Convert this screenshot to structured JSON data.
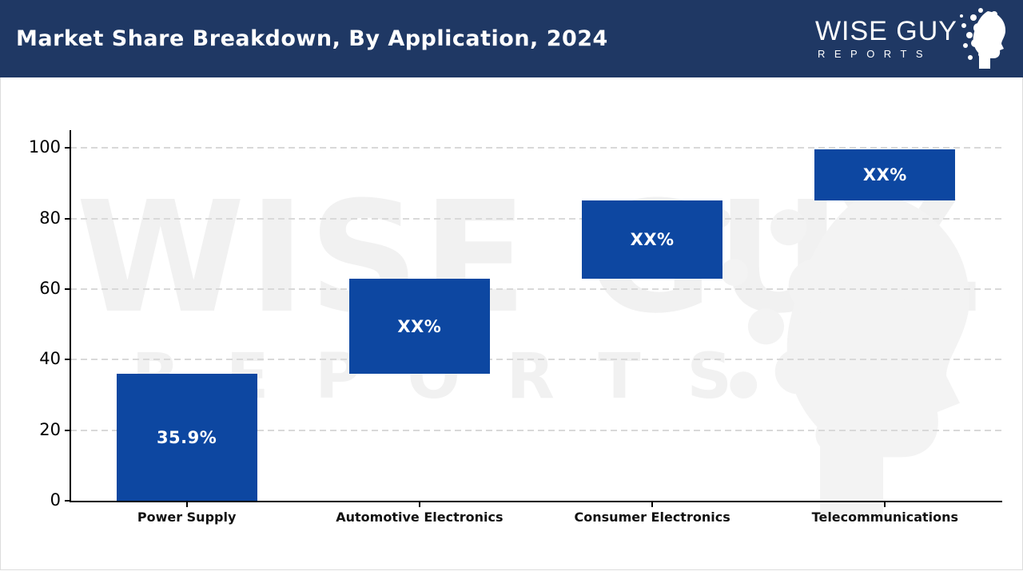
{
  "header": {
    "title": "Market Share Breakdown, By Application, 2024",
    "bg_color": "#1f3864",
    "logo": {
      "line1": "WISE GUY",
      "line2": "REPORTS"
    }
  },
  "watermark": {
    "line1": "WISE GUY.",
    "line2": "REPORTS"
  },
  "chart_data": {
    "type": "bar",
    "subtype": "waterfall",
    "title": "Market Share Breakdown, By Application, 2024",
    "categories": [
      "Power Supply",
      "Automotive Electronics",
      "Consumer Electronics",
      "Telecommunications"
    ],
    "bars": [
      {
        "label": "35.9%",
        "start": 0,
        "end": 35.9
      },
      {
        "label": "XX%",
        "start": 35.9,
        "end": 63.0
      },
      {
        "label": "XX%",
        "start": 63.0,
        "end": 85.1
      },
      {
        "label": "XX%",
        "start": 85.1,
        "end": 99.7
      }
    ],
    "y_ticks": [
      0,
      20,
      40,
      60,
      80,
      100
    ],
    "ylim": [
      0,
      105
    ],
    "xlabel": "",
    "ylabel": "",
    "bar_color": "#0d47a1",
    "bar_label_color": "#ffffff",
    "grid": "horizontal-dashed",
    "gridline_color": "#d9d9d9",
    "axis_color": "#000000",
    "legend": "none"
  }
}
